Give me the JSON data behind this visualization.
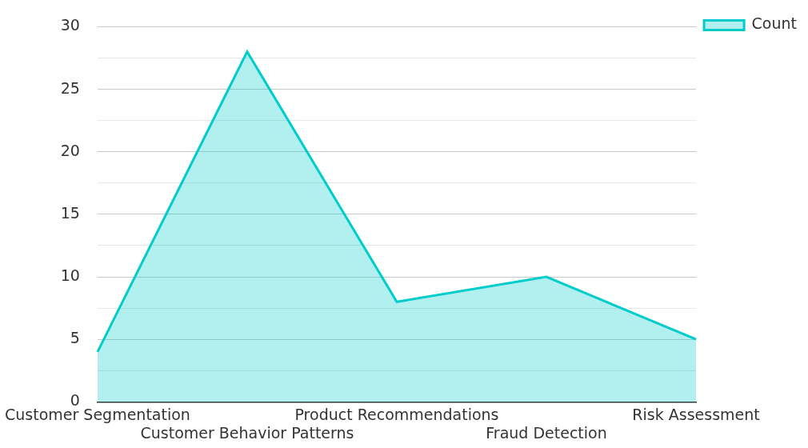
{
  "chart_data": {
    "type": "area",
    "categories": [
      "Customer Segmentation",
      "Customer Behavior Patterns",
      "Product Recommendations",
      "Fraud Detection",
      "Risk Assessment"
    ],
    "series": [
      {
        "name": "Count",
        "color": "#00cccc",
        "values": [
          4,
          28,
          8,
          10,
          5
        ]
      }
    ],
    "ylim": [
      0,
      30
    ],
    "yticks": [
      0,
      {
        "value": 2.5,
        "label": null
      },
      5,
      {
        "value": 7.5,
        "label": null
      },
      10,
      {
        "value": 12.5,
        "label": null
      },
      15,
      {
        "value": 17.5,
        "label": null
      },
      20,
      {
        "value": 22.5,
        "label": null
      },
      25,
      {
        "value": 27.5,
        "label": null
      },
      30
    ],
    "grid": "y",
    "legend": "top right"
  }
}
